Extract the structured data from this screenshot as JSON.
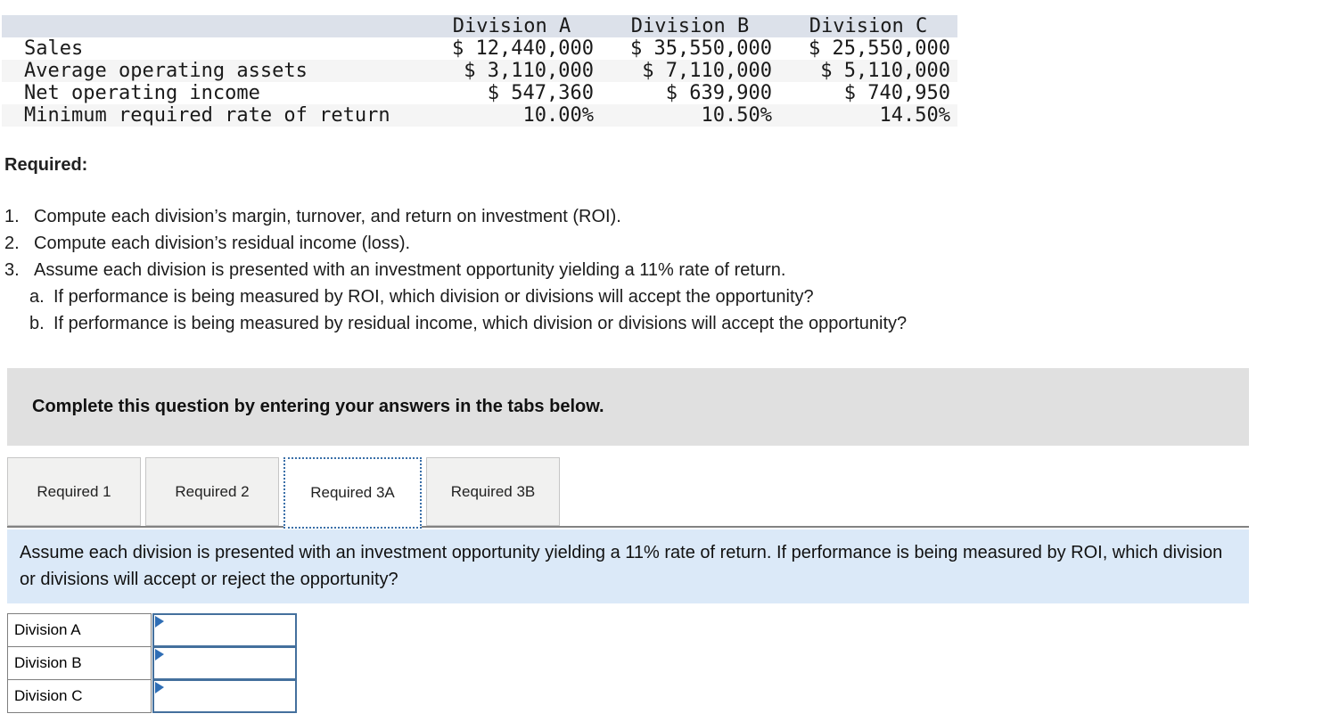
{
  "data_table": {
    "columns": [
      "Division A",
      "Division B",
      "Division C"
    ],
    "rows": [
      {
        "label": "Sales",
        "values": [
          "$ 12,440,000",
          "$ 35,550,000",
          "$ 25,550,000"
        ]
      },
      {
        "label": "Average operating assets",
        "values": [
          "$ 3,110,000",
          "$ 7,110,000",
          "$ 5,110,000"
        ]
      },
      {
        "label": "Net operating income",
        "values": [
          "$ 547,360",
          "$ 639,900",
          "$ 740,950"
        ]
      },
      {
        "label": "Minimum required rate of return",
        "values": [
          "10.00%",
          "10.50%",
          "14.50%"
        ]
      }
    ]
  },
  "required": {
    "heading": "Required:",
    "items": [
      {
        "num": "1.",
        "text": "Compute each division’s margin, turnover, and return on investment (ROI)."
      },
      {
        "num": "2.",
        "text": "Compute each division’s residual income (loss)."
      },
      {
        "num": "3.",
        "text": "Assume each division is presented with an investment opportunity yielding a 11% rate of return."
      },
      {
        "num": "a.",
        "text": "If performance is being measured by ROI, which division or divisions will accept the opportunity?"
      },
      {
        "num": "b.",
        "text": "If performance is being measured by residual income, which division or divisions will accept the opportunity?"
      }
    ]
  },
  "banner": {
    "text": "Complete this question by entering your answers in the tabs below."
  },
  "tabs": [
    {
      "label": "Required 1",
      "active": false
    },
    {
      "label": "Required 2",
      "active": false
    },
    {
      "label": "Required 3A",
      "active": true
    },
    {
      "label": "Required 3B",
      "active": false
    }
  ],
  "question_panel": {
    "text": "Assume each division is presented with an investment opportunity yielding a 11% rate of return. If performance is being measured by ROI, which division or divisions will accept or reject the opportunity?"
  },
  "answer_table": {
    "rows": [
      {
        "label": "Division A",
        "value": ""
      },
      {
        "label": "Division B",
        "value": ""
      },
      {
        "label": "Division C",
        "value": ""
      }
    ]
  },
  "icons": {
    "dropdown_flag": "right-pointing-triangle"
  },
  "colors": {
    "accent_blue": "#2f6eb5",
    "answer_border": "#44709d",
    "panel_bg": "#dbe9f8",
    "table_header_bg": "#dce1ea",
    "table_alt_row_bg": "#f5f5f5",
    "banner_bg": "#e0e0e0",
    "tab_bg": "#f1f1f0",
    "tab_border": "#c6c6c6",
    "tab_strip_border": "#828282"
  }
}
